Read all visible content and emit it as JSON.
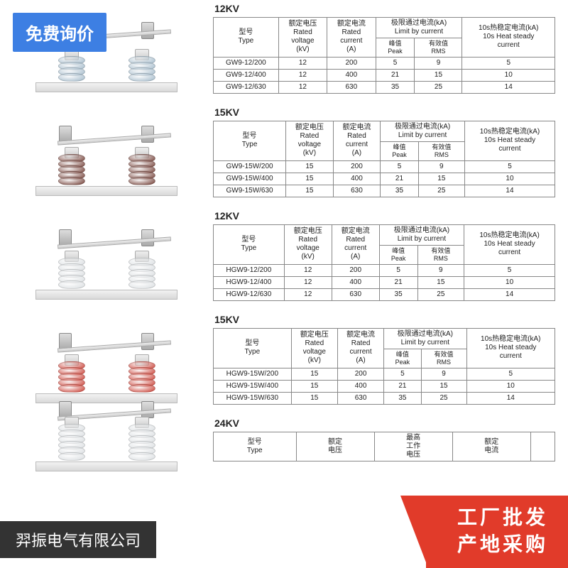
{
  "badge": "免费询价",
  "company": "羿振电气有限公司",
  "redbox": {
    "line1": "工厂批发",
    "line2": "产地采购"
  },
  "header_labels": {
    "type": "型号\nType",
    "rated_voltage": "额定电压\nRated\nvoltage\n(kV)",
    "rated_current": "额定电流\nRated\ncurrent\n(A)",
    "limit": "极限通过电流(kA)\nLimit by current",
    "peak": "峰值\nPeak",
    "rms": "有效值\nRMS",
    "heat": "10s热稳定电流(kA)\n10s Heat steady\ncurrent"
  },
  "header_labels_24": {
    "type": "型号\nType",
    "rated_voltage": "额定\n电压",
    "max_voltage": "最高\n工作\n电压",
    "rated_current": "额定\n电流"
  },
  "sections": [
    {
      "title": "12KV",
      "insulator_color": "#9fb7c8",
      "disc_count": 4,
      "rows": [
        [
          "GW9-12/200",
          "12",
          "200",
          "5",
          "9",
          "5"
        ],
        [
          "GW9-12/400",
          "12",
          "400",
          "21",
          "15",
          "10"
        ],
        [
          "GW9-12/630",
          "12",
          "630",
          "35",
          "25",
          "14"
        ]
      ]
    },
    {
      "title": "15KV",
      "insulator_color": "#6b342b",
      "disc_count": 5,
      "rows": [
        [
          "GW9-15W/200",
          "15",
          "200",
          "5",
          "9",
          "5"
        ],
        [
          "GW9-15W/400",
          "15",
          "400",
          "21",
          "15",
          "10"
        ],
        [
          "GW9-15W/630",
          "15",
          "630",
          "35",
          "25",
          "14"
        ]
      ]
    },
    {
      "title": "12KV",
      "insulator_color": "#d9dde0",
      "disc_count": 5,
      "rows": [
        [
          "HGW9-12/200",
          "12",
          "200",
          "5",
          "9",
          "5"
        ],
        [
          "HGW9-12/400",
          "12",
          "400",
          "21",
          "15",
          "10"
        ],
        [
          "HGW9-12/630",
          "12",
          "630",
          "35",
          "25",
          "14"
        ]
      ]
    },
    {
      "title": "15KV",
      "insulator_color": "#c7352a",
      "disc_count": 5,
      "rows": [
        [
          "HGW9-15W/200",
          "15",
          "200",
          "5",
          "9",
          "5"
        ],
        [
          "HGW9-15W/400",
          "15",
          "400",
          "21",
          "15",
          "10"
        ],
        [
          "HGW9-15W/630",
          "15",
          "630",
          "35",
          "25",
          "14"
        ]
      ]
    }
  ],
  "last_section": {
    "title": "24KV",
    "insulator_color": "#d9dde0",
    "disc_count": 6
  }
}
